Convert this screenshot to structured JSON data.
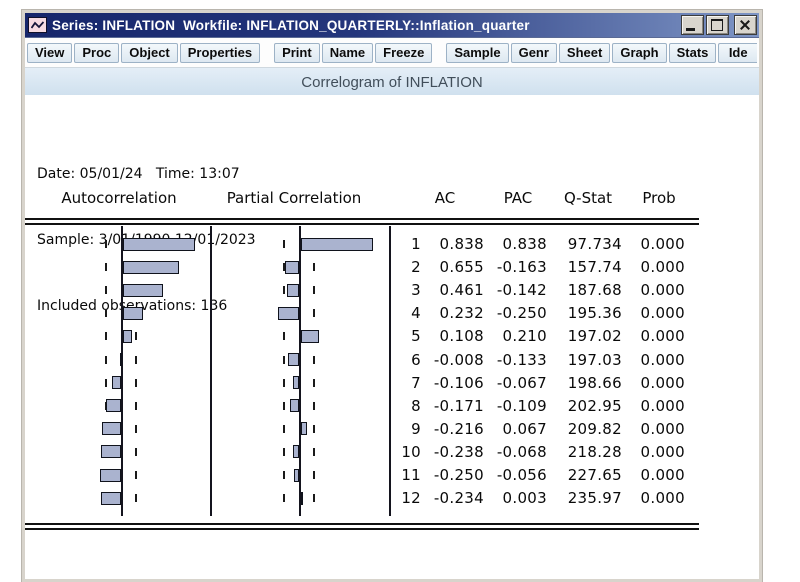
{
  "window": {
    "title": "Series: INFLATION  Workfile: INFLATION_QUARTERLY::Inflation_quarter"
  },
  "toolbar": {
    "groups": [
      [
        "View",
        "Proc",
        "Object",
        "Properties"
      ],
      [
        "Print",
        "Name",
        "Freeze"
      ],
      [
        "Sample",
        "Genr",
        "Sheet",
        "Graph",
        "Stats",
        "Ide"
      ]
    ]
  },
  "banner": {
    "title": "Correlogram of INFLATION"
  },
  "meta": {
    "date_line": "Date: 05/01/24   Time: 13:07",
    "sample_line": "Sample: 3/01/1990 12/01/2023",
    "obs_line": "Included observations: 136"
  },
  "chart_data": {
    "type": "bar",
    "variant": "correlogram-paired-horizontal-bars",
    "left_panel_label": "Autocorrelation",
    "right_panel_label": "Partial Correlation",
    "columns": [
      "AC",
      "PAC",
      "Q-Stat",
      "Prob"
    ],
    "se_bound": 0.171,
    "xlim_per_panel": [
      -1,
      1
    ],
    "colors": {
      "bar_fill": "#aab3cf",
      "bar_border": "#10131c"
    },
    "rows": [
      {
        "lag": "1",
        "ac": "0.838",
        "pac": "0.838",
        "q_stat": "97.734",
        "prob": "0.000"
      },
      {
        "lag": "2",
        "ac": "0.655",
        "pac": "-0.163",
        "q_stat": "157.74",
        "prob": "0.000"
      },
      {
        "lag": "3",
        "ac": "0.461",
        "pac": "-0.142",
        "q_stat": "187.68",
        "prob": "0.000"
      },
      {
        "lag": "4",
        "ac": "0.232",
        "pac": "-0.250",
        "q_stat": "195.36",
        "prob": "0.000"
      },
      {
        "lag": "5",
        "ac": "0.108",
        "pac": "0.210",
        "q_stat": "197.02",
        "prob": "0.000"
      },
      {
        "lag": "6",
        "ac": "-0.008",
        "pac": "-0.133",
        "q_stat": "197.03",
        "prob": "0.000"
      },
      {
        "lag": "7",
        "ac": "-0.106",
        "pac": "-0.067",
        "q_stat": "198.66",
        "prob": "0.000"
      },
      {
        "lag": "8",
        "ac": "-0.171",
        "pac": "-0.109",
        "q_stat": "202.95",
        "prob": "0.000"
      },
      {
        "lag": "9",
        "ac": "-0.216",
        "pac": "0.067",
        "q_stat": "209.82",
        "prob": "0.000"
      },
      {
        "lag": "10",
        "ac": "-0.238",
        "pac": "-0.068",
        "q_stat": "218.28",
        "prob": "0.000"
      },
      {
        "lag": "11",
        "ac": "-0.250",
        "pac": "-0.056",
        "q_stat": "227.65",
        "prob": "0.000"
      },
      {
        "lag": "12",
        "ac": "-0.234",
        "pac": "0.003",
        "q_stat": "235.97",
        "prob": "0.000"
      }
    ]
  }
}
